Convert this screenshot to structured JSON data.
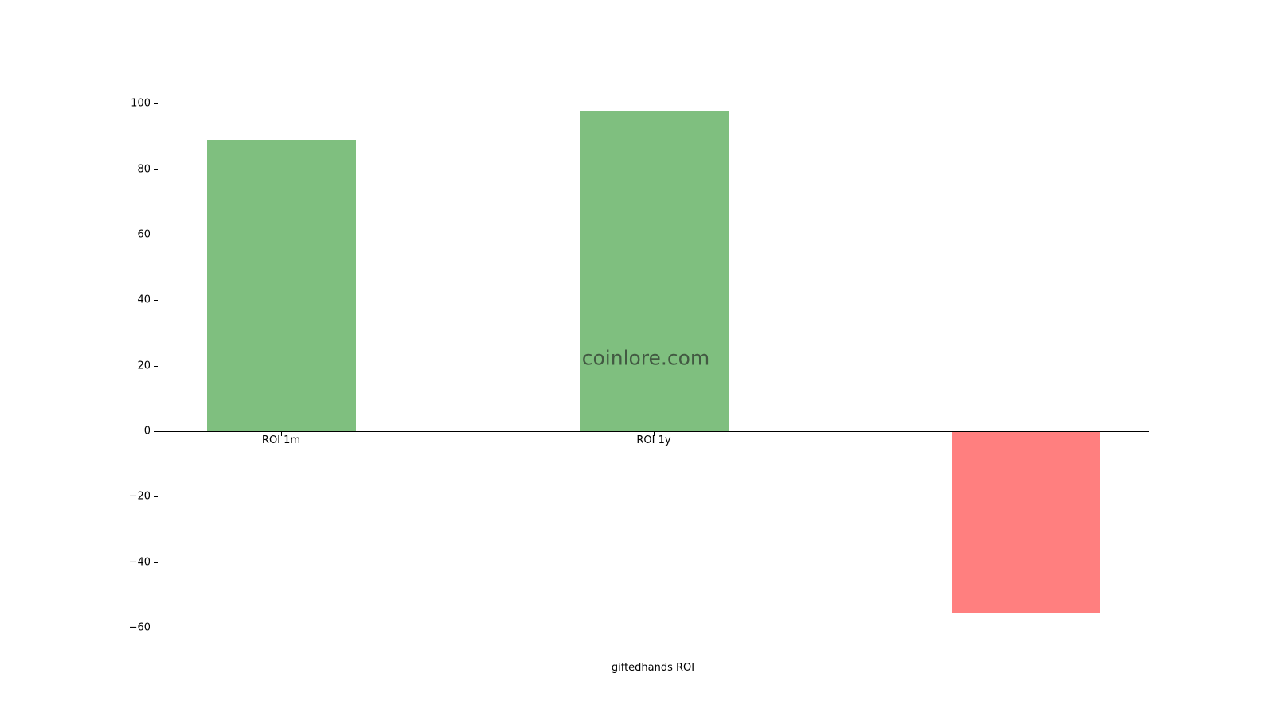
{
  "chart_data": {
    "type": "bar",
    "title": "",
    "xlabel": "giftedhands ROI",
    "ylabel": "",
    "categories": [
      "ROI 1m",
      "ROI 1y",
      ""
    ],
    "values": [
      89,
      98,
      -55
    ],
    "bar_colors": [
      "#7fbf7f",
      "#7fbf7f",
      "#ff7f7f"
    ],
    "positive_color": "#7fbf7f",
    "negative_color": "#ff7f7f",
    "yticks": [
      -60,
      -40,
      -20,
      0,
      20,
      40,
      60,
      80,
      100
    ],
    "ylim": [
      -62.65,
      105.65
    ],
    "xlim": [
      -0.33,
      2.33
    ],
    "bar_width": 0.4,
    "grid": false,
    "legend_position": "none"
  },
  "watermark": {
    "text": "coinlore.com"
  },
  "colors": {
    "axis": "#000000",
    "text": "#000000"
  }
}
